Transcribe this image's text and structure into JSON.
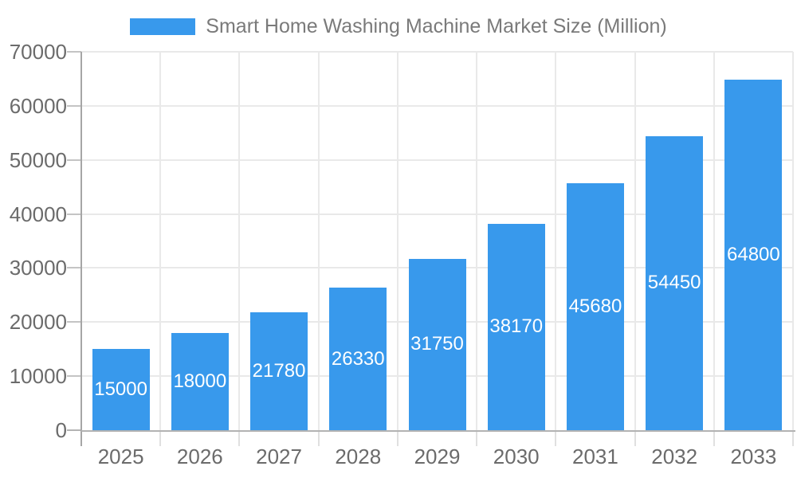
{
  "legend": {
    "label": "Smart Home Washing Machine Market Size (Million)"
  },
  "chart_data": {
    "type": "bar",
    "categories": [
      "2025",
      "2026",
      "2027",
      "2028",
      "2029",
      "2030",
      "2031",
      "2032",
      "2033"
    ],
    "values": [
      15000,
      18000,
      21780,
      26330,
      31750,
      38170,
      45680,
      54450,
      64800
    ],
    "title": "Smart Home Washing Machine Market Size (Million)",
    "xlabel": "",
    "ylabel": "",
    "ylim": [
      0,
      70000
    ],
    "ytick_interval": 10000,
    "ytick_labels": [
      "0",
      "10000",
      "20000",
      "30000",
      "40000",
      "50000",
      "60000",
      "70000"
    ],
    "grid": true,
    "legend_position": "top",
    "value_label_position": "inside-center"
  },
  "colors": {
    "bar": "#3899EC",
    "value_label": "#FFFFFF",
    "tick_text": "#6B6B6B",
    "legend_text": "#7A7A7A",
    "y_axis_line": "#A6A6A6",
    "x_axis_line": "#B3B3B3",
    "gridline": "#E9E9E9",
    "y_tick_line": "#C4C4C4",
    "x_tick_line": "#E0E0E0",
    "background": "#FFFFFF"
  }
}
